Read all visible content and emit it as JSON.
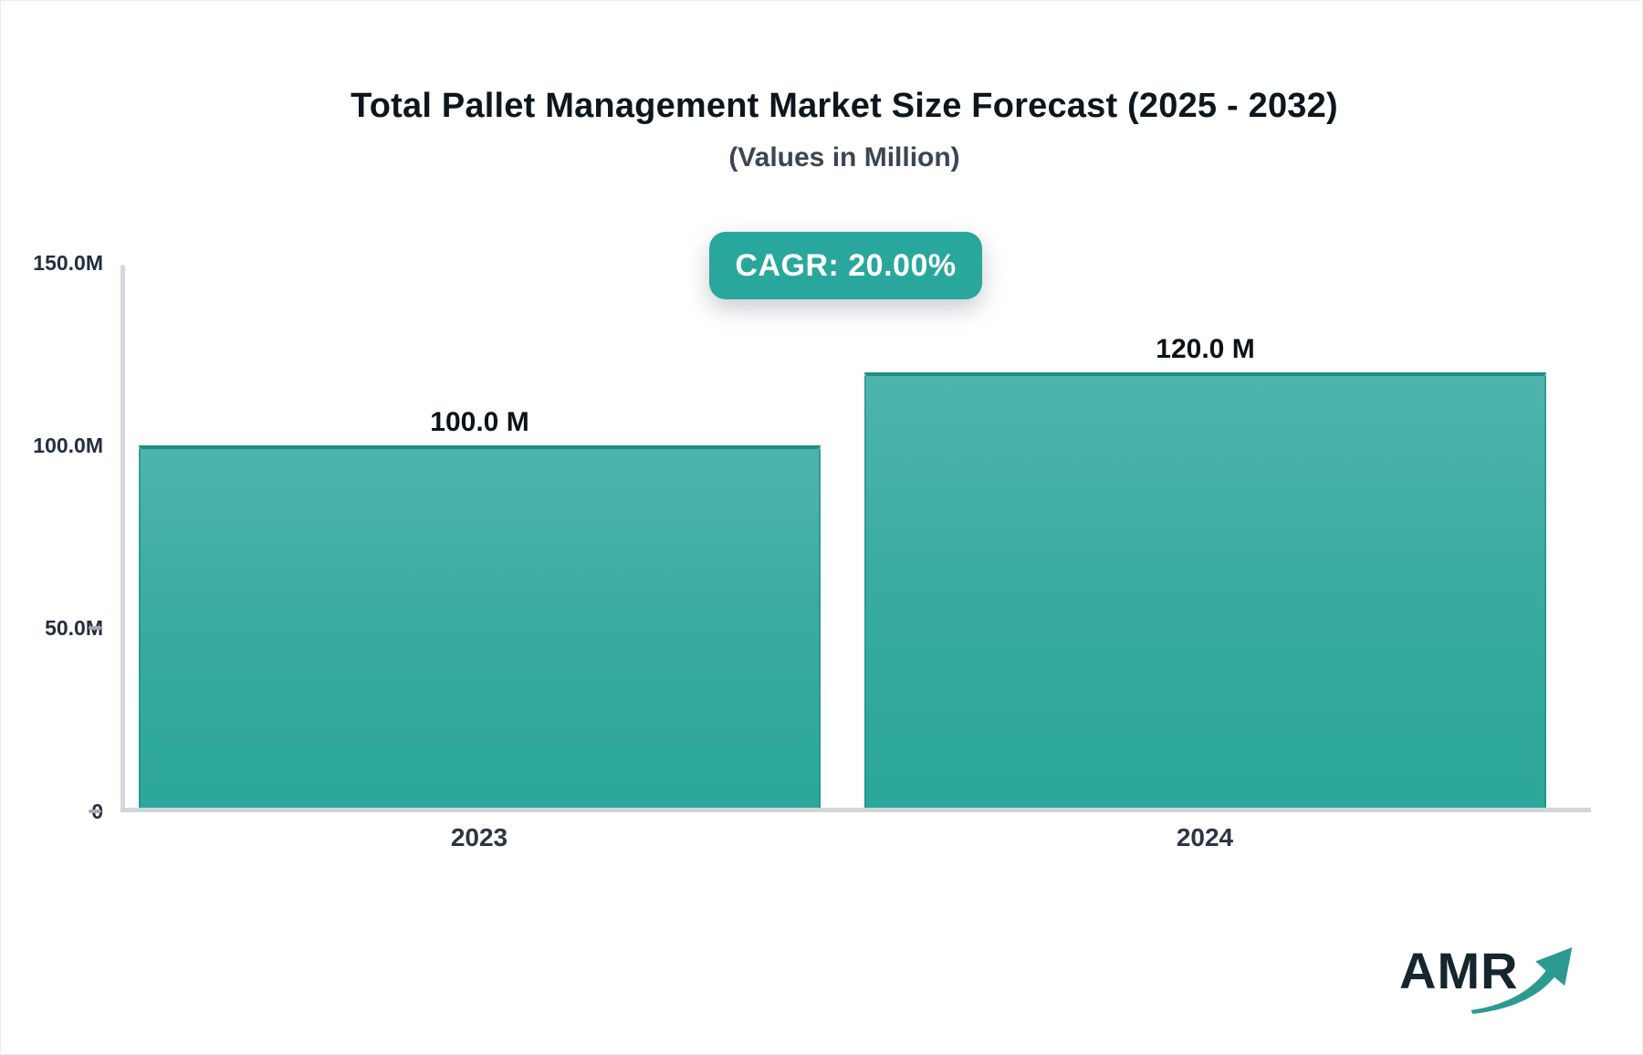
{
  "header": {
    "title": "Total Pallet Management Market Size Forecast (2025 - 2032)",
    "subtitle": "(Values in Million)",
    "cagr_badge": "CAGR: 20.00%"
  },
  "chart_data": {
    "type": "bar",
    "title": "Total Pallet Management Market Size Forecast (2025 - 2032)",
    "subtitle": "(Values in Million)",
    "unit": "Million",
    "cagr_percent": "20.00%",
    "categories": [
      "2023",
      "2024"
    ],
    "values": [
      100.0,
      120.0
    ],
    "value_labels": [
      "100.0 M",
      "120.0 M"
    ],
    "ylim": [
      0,
      150
    ],
    "y_tick_labels_top_down": [
      "150.0M",
      "100.0M",
      "50.0M",
      "0"
    ],
    "grid": false,
    "legend": "none",
    "bar_gradient_top": "#4fb5ac",
    "bar_gradient_bottom": "#2aa89a",
    "bar_top_stroke": "#1e8e86"
  },
  "branding": {
    "logo_text": "AMR"
  },
  "colors": {
    "accent_teal": "#2aa79c",
    "axis_line": "#d4d7de",
    "text_dark": "#0e161d"
  }
}
